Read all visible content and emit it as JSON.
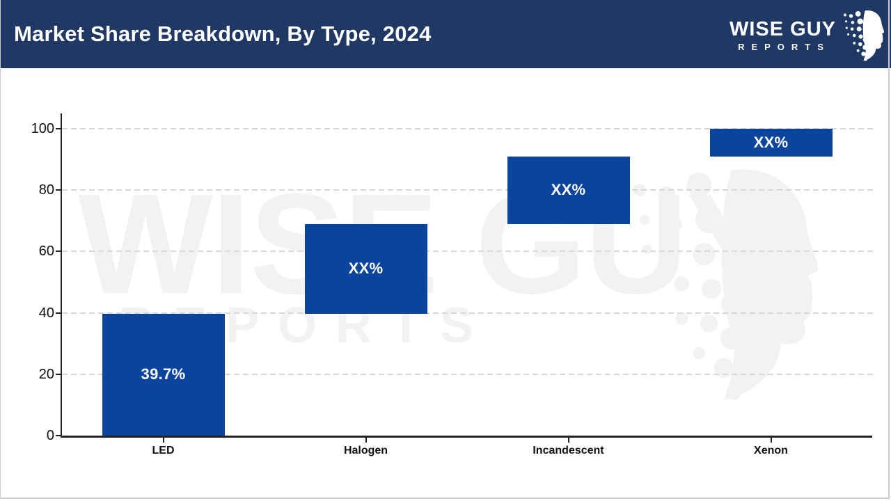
{
  "header": {
    "title": "Market Share Breakdown, By Type, 2024",
    "logo": {
      "line1": "WISE GUY",
      "line2": "REPORTS"
    }
  },
  "watermark": {
    "line1": "WISE GUY",
    "line2": "REPORTS"
  },
  "colors": {
    "header_bg": "#203864",
    "bar": "#0a449c",
    "grid": "#d7d7d7",
    "axis": "#222222",
    "text": "#111111",
    "bar_label": "#ffffff",
    "watermark": "#f2f2f4"
  },
  "chart_data": {
    "type": "bar",
    "subtype": "waterfall",
    "title": "Market Share Breakdown, By Type, 2024",
    "categories": [
      "LED",
      "Halogen",
      "Incandescent",
      "Xenon"
    ],
    "segments": [
      {
        "category": "LED",
        "start": 0,
        "end": 39.7,
        "label": "39.7%"
      },
      {
        "category": "Halogen",
        "start": 39.7,
        "end": 69,
        "label": "XX%"
      },
      {
        "category": "Incandescent",
        "start": 69,
        "end": 91,
        "label": "XX%"
      },
      {
        "category": "Xenon",
        "start": 91,
        "end": 100,
        "label": "XX%"
      }
    ],
    "yticks": [
      0,
      20,
      40,
      60,
      80,
      100
    ],
    "ylim": [
      0,
      105
    ],
    "xlabel": "",
    "ylabel": "",
    "grid": "dashed-horizontal",
    "legend": "none"
  }
}
